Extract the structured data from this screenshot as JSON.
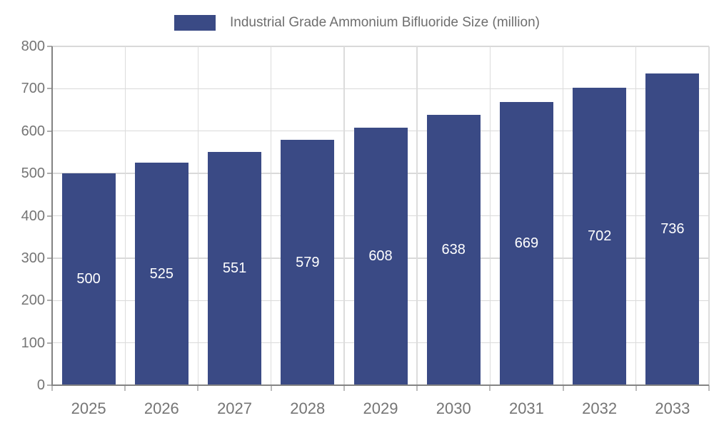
{
  "legend": {
    "label": "Industrial Grade Ammonium Bifluoride Size (million)",
    "swatch_color": "#3A4A85"
  },
  "chart_data": {
    "type": "bar",
    "title": "Industrial Grade Ammonium Bifluoride Size (million)",
    "categories": [
      "2025",
      "2026",
      "2027",
      "2028",
      "2029",
      "2030",
      "2031",
      "2032",
      "2033"
    ],
    "values": [
      500,
      525,
      551,
      579,
      608,
      638,
      669,
      702,
      736
    ],
    "xlabel": "",
    "ylabel": "",
    "ylim": [
      0,
      800
    ],
    "yticks": [
      0,
      100,
      200,
      300,
      400,
      500,
      600,
      700,
      800
    ],
    "grid": true,
    "legend_position": "top-center",
    "bar_color": "#3A4A85",
    "bar_label_color": "#ffffff"
  }
}
